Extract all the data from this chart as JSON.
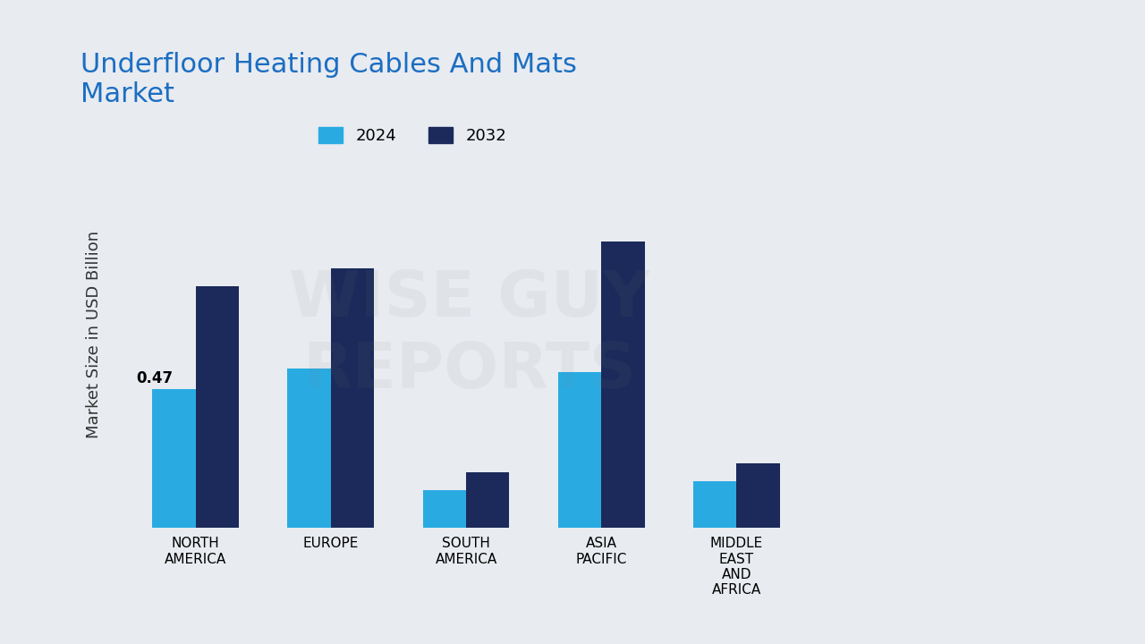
{
  "title": "Underfloor Heating Cables And Mats\nMarket",
  "ylabel": "Market Size in USD Billion",
  "categories": [
    "NORTH\nAMERICA",
    "EUROPE",
    "SOUTH\nAMERICA",
    "ASIA\nPACIFIC",
    "MIDDLE\nEAST\nAND\nAFRICA"
  ],
  "values_2024": [
    0.47,
    0.54,
    0.13,
    0.53,
    0.16
  ],
  "values_2032": [
    0.82,
    0.88,
    0.19,
    0.97,
    0.22
  ],
  "color_2024": "#29ABE2",
  "color_2032": "#1B2A5A",
  "background_color": "#E8EBF0",
  "title_color": "#1B6EC2",
  "ylabel_color": "#333333",
  "annotation_value": "0.47",
  "annotation_category_idx": 0,
  "legend_labels": [
    "2024",
    "2032"
  ],
  "bar_width": 0.32,
  "title_fontsize": 22,
  "ylabel_fontsize": 13,
  "tick_fontsize": 11,
  "legend_fontsize": 13
}
